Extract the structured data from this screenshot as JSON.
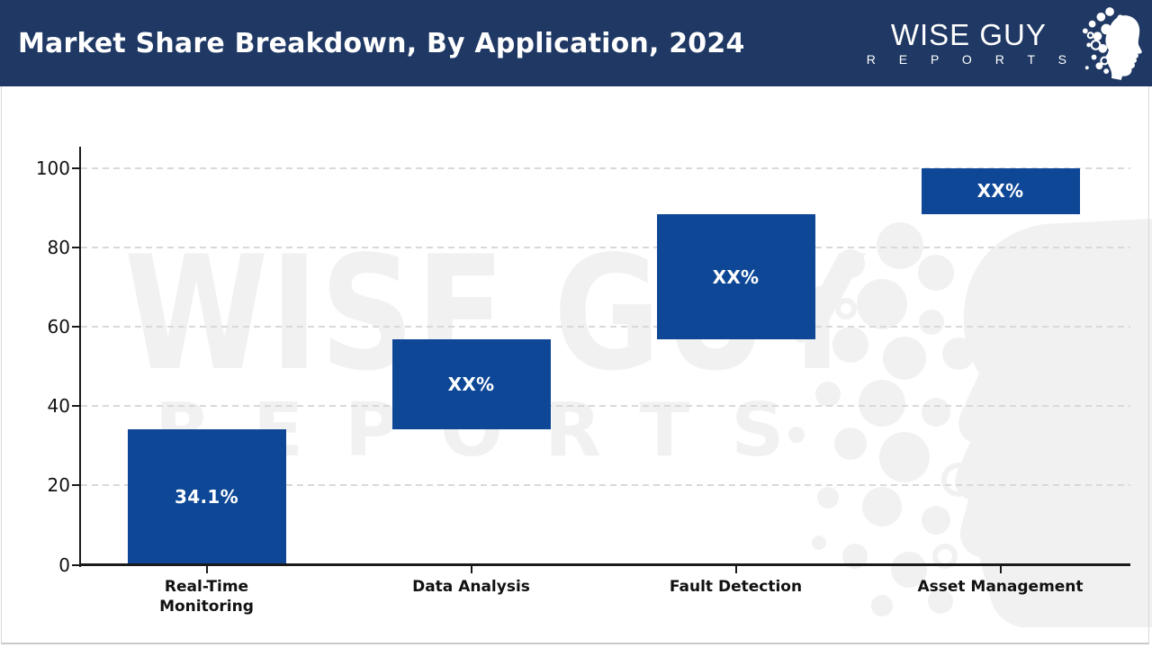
{
  "header": {
    "title": "Market Share Breakdown, By Application, 2024",
    "logo": {
      "line1": "WISE GUY",
      "line2": "R E P O R T S"
    }
  },
  "watermark": {
    "line1": "WISE GUY",
    "line2": "REPORTS"
  },
  "chart_data": {
    "type": "bar",
    "variant": "waterfall",
    "title": "Market Share Breakdown, By Application, 2024",
    "categories": [
      "Real-Time Monitoring",
      "Data Analysis",
      "Fault Detection",
      "Asset Management"
    ],
    "category_display": [
      "Real-Time\nMonitoring",
      "Data Analysis",
      "Fault Detection",
      "Asset Management"
    ],
    "segments": [
      {
        "category": "Real-Time Monitoring",
        "start": 0,
        "end": 34.1,
        "label": "34.1%"
      },
      {
        "category": "Data Analysis",
        "start": 34.1,
        "end": 56.7,
        "label": "XX%"
      },
      {
        "category": "Fault Detection",
        "start": 56.7,
        "end": 88.4,
        "label": "XX%"
      },
      {
        "category": "Asset Management",
        "start": 88.4,
        "end": 100,
        "label": "XX%"
      }
    ],
    "yticks": [
      0,
      20,
      40,
      60,
      80,
      100
    ],
    "ylim": [
      0,
      105
    ],
    "xlabel": "",
    "ylabel": "",
    "grid": {
      "horizontal": true,
      "style": "dashed"
    },
    "legend": "none",
    "colors": {
      "bar": "#0d4796",
      "bar_label": "#ffffff",
      "header_bg": "#1f3864",
      "logo_text": "#ffffff",
      "axis": "#1a1a1a",
      "grid": "#d9d9da",
      "tick_label": "#111111",
      "watermark": "#f1f1f2"
    }
  }
}
